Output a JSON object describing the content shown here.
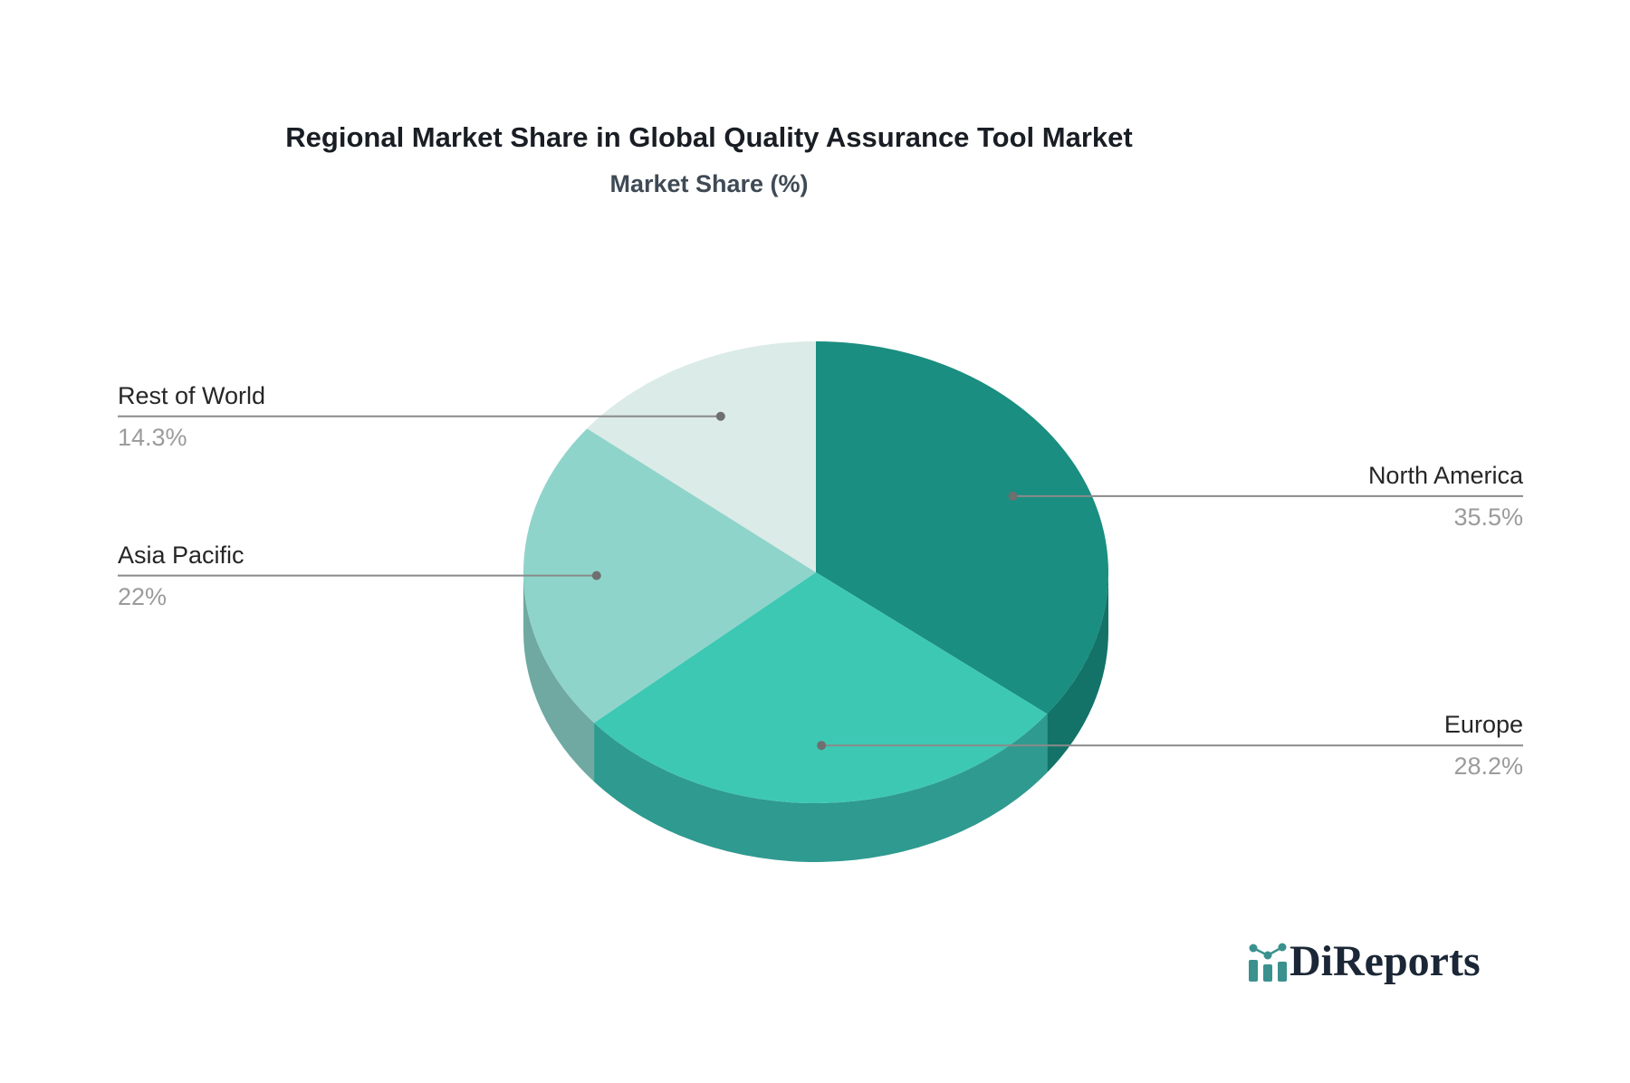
{
  "title": "Regional Market Share in Global Quality Assurance Tool Market",
  "subtitle": "Market Share (%)",
  "logo": {
    "text": "DiReports",
    "text_color": "#1b2736",
    "icon_color": "#3a918e"
  },
  "chart_data": {
    "type": "pie",
    "title": "Regional Market Share in Global Quality Assurance Tool Market",
    "subtitle": "Market Share (%)",
    "unit": "%",
    "effect": "3d",
    "start_angle_deg": 0,
    "direction": "clockwise",
    "legend_position": "none",
    "leader_line_color": "#8a8a8a",
    "leader_dot_color": "#6f6f6f",
    "label_text_color": "#262626",
    "value_text_color": "#9b9b9b",
    "slices": [
      {
        "label": "North America",
        "value": 35.5,
        "value_label": "35.5%",
        "color": "#1a8e80",
        "side_color": "#137368",
        "label_side": "right"
      },
      {
        "label": "Europe",
        "value": 28.2,
        "value_label": "28.2%",
        "color": "#3dc8b4",
        "side_color": "#2f9a90",
        "label_side": "right"
      },
      {
        "label": "Asia Pacific",
        "value": 22,
        "value_label": "22%",
        "color": "#8fd4cb",
        "side_color": "#6fa9a1",
        "label_side": "left"
      },
      {
        "label": "Rest of World",
        "value": 14.3,
        "value_label": "14.3%",
        "color": "#dbebe7",
        "side_color": "#c2d6d2",
        "label_side": "left"
      }
    ]
  }
}
